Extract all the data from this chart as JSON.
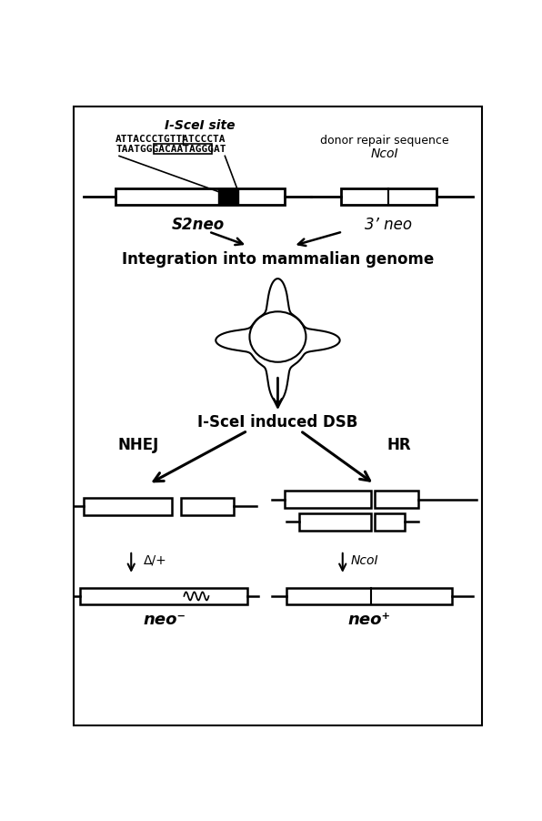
{
  "iscel_site_label": "I-SceI site",
  "seq_top": "ATTACCCTGTTATCCCTA",
  "seq_bot": "TAATGGGACAATAGGGAT",
  "s2neo_label": "S2neo",
  "donor_label": "donor repair sequence",
  "ncol_label_top": "NcoI",
  "three_neo_label": "3’ neo",
  "integration_text": "Integration into mammalian genome",
  "iscel_dsb_text": "I-SceI induced DSB",
  "nhej_label": "NHEJ",
  "hr_label": "HR",
  "neo_minus_label": "neo⁻",
  "neo_plus_label": "neo⁺",
  "delta_plus_label": "Δ/+",
  "ncol_label_bottom": "NcoI",
  "bg_color": "#ffffff",
  "line_color": "#000000"
}
